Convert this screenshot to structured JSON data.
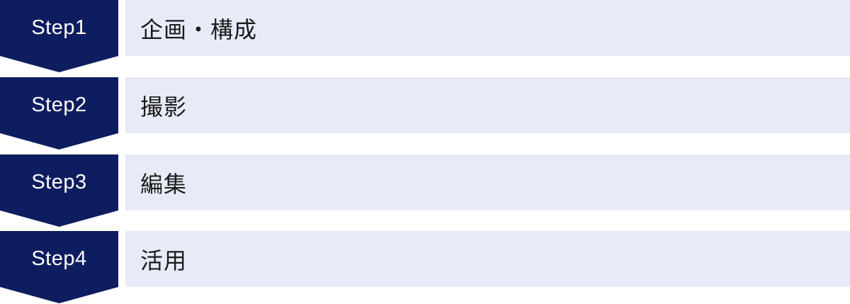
{
  "steps": [
    {
      "step_label": "Step1",
      "title": "企画・構成"
    },
    {
      "step_label": "Step2",
      "title": "撮影"
    },
    {
      "step_label": "Step3",
      "title": "編集"
    },
    {
      "step_label": "Step4",
      "title": "活用"
    }
  ],
  "colors": {
    "step-navy": "#0d1d5f",
    "box-lavender": "#e7ebf7",
    "title-text": "#1b1b1b",
    "step-label-text": "#ffffff"
  }
}
